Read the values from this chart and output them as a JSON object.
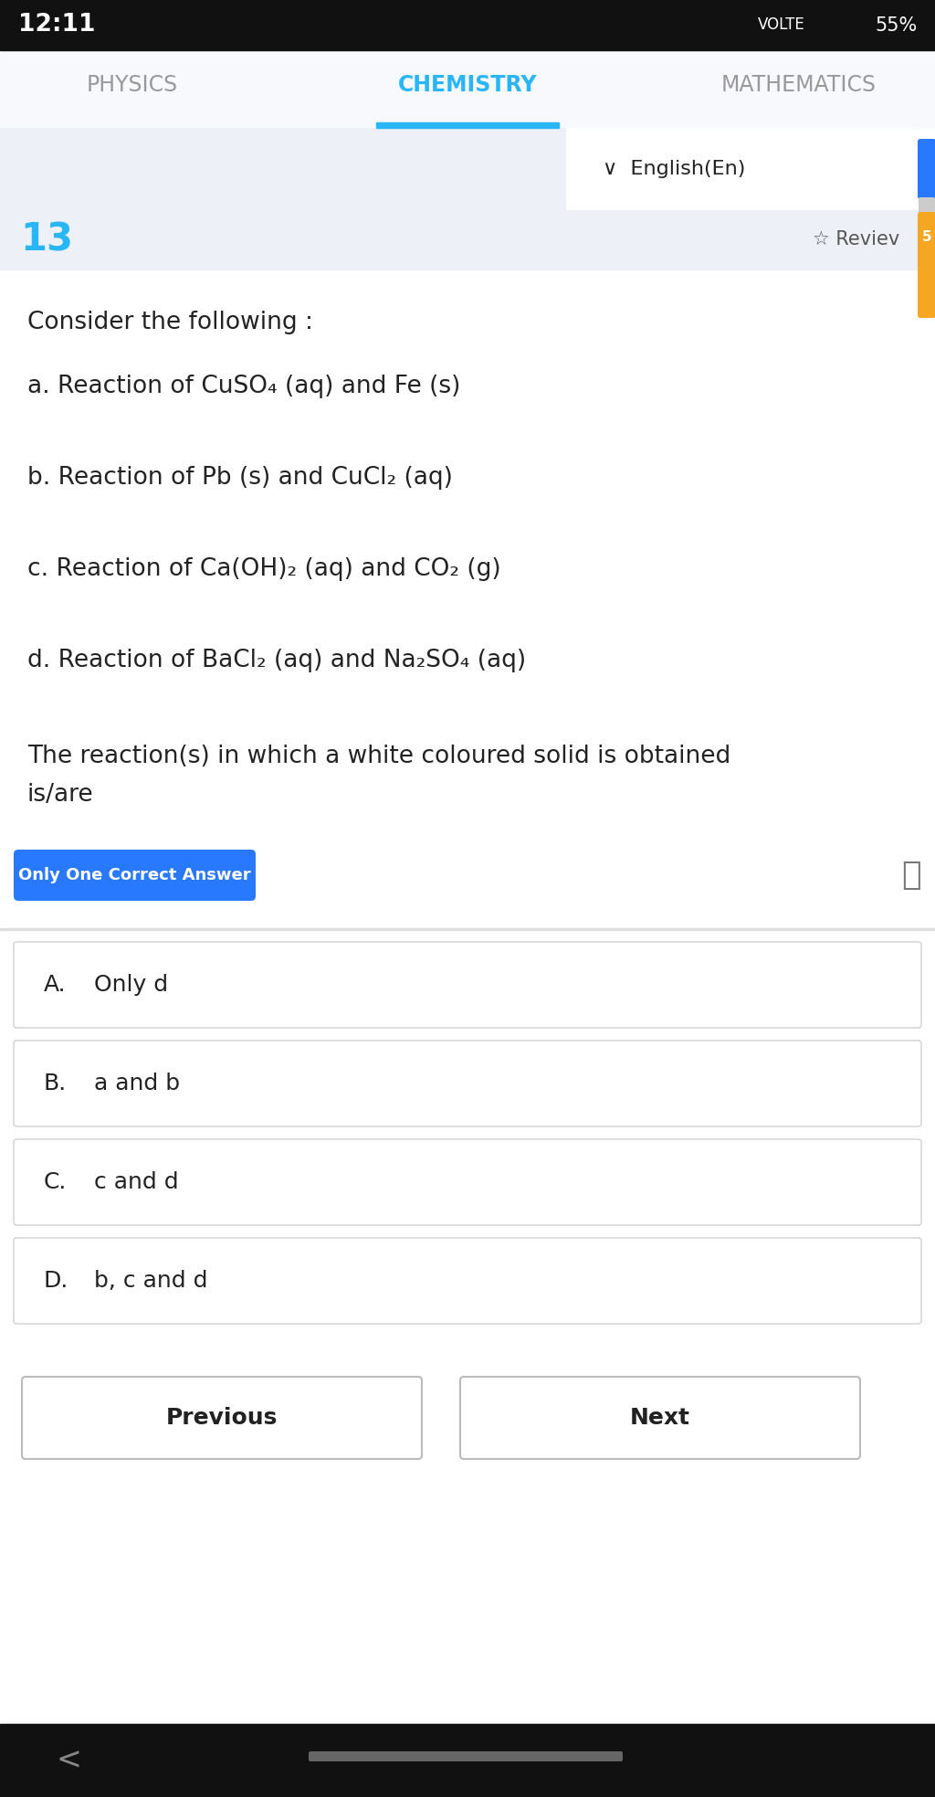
{
  "status_bar_time": "12:11",
  "tab_physics": "PHYSICS",
  "tab_chemistry": "CHEMISTRY",
  "tab_math": "MATHEMATICS",
  "tab_underline_color": "#29b6f6",
  "english_label": "∨  English(En)",
  "question_number": "13",
  "review_label": "☆ Reviev",
  "consider_text": "Consider the following :",
  "reaction_a": "a. Reaction of CuSO₄ (aq) and Fe (s)",
  "reaction_b": "b. Reaction of Pb (s) and CuCl₂ (aq)",
  "reaction_c": "c. Reaction of Ca(OH)₂ (aq) and CO₂ (g)",
  "reaction_d": "d. Reaction of BaCl₂ (aq) and Na₂SO₄ (aq)",
  "question_text_1": "The reaction(s) in which a white coloured solid is obtained",
  "question_text_2": "is/are",
  "badge_text": "Only One Correct Answer",
  "badge_color": "#2979ff",
  "options": [
    {
      "label": "A.",
      "text": "Only d"
    },
    {
      "label": "B.",
      "text": "a and b"
    },
    {
      "label": "C.",
      "text": "c and d"
    },
    {
      "label": "D.",
      "text": "b, c and d"
    }
  ],
  "prev_button": "Previous",
  "next_button": "Next",
  "bg_color": "#ffffff",
  "header_bg": "#eef0f7",
  "option_border": "#d0d0d0",
  "text_color": "#222222",
  "tab_inactive_color": "#999999",
  "status_bar_bg": "#111111",
  "orange_bar_color": "#f5a623",
  "blue_side_color": "#2979ff",
  "scrollbar_color": "#cccccc"
}
